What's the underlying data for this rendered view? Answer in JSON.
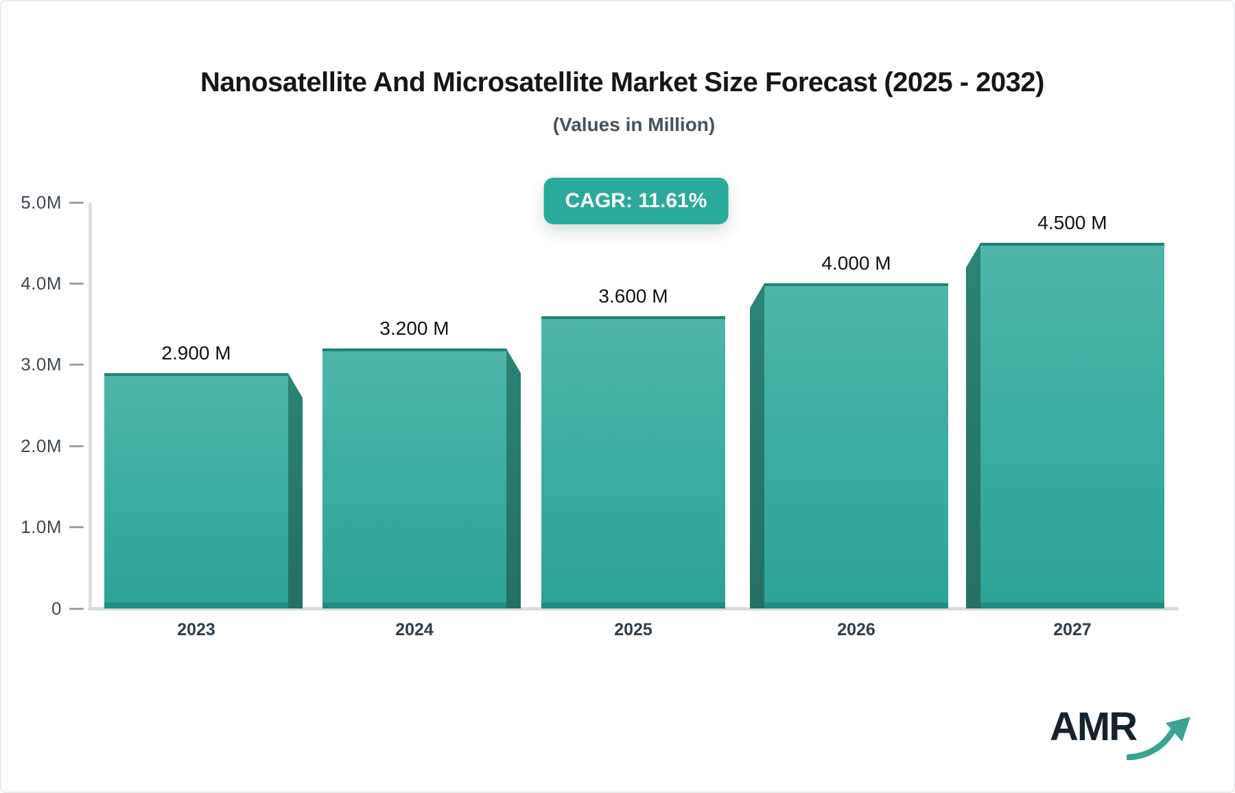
{
  "page": {
    "title": "Nanosatellite And Microsatellite Market Size Forecast (2025 - 2032)",
    "subtitle": "(Values in Million)",
    "cagr_label": "CAGR: 11.61%",
    "brand": "AMR"
  },
  "chart_data": {
    "type": "bar",
    "title": "Nanosatellite And Microsatellite Market Size Forecast (2025 - 2032)",
    "subtitle": "(Values in Million)",
    "unit": "Million",
    "categories": [
      "2023",
      "2024",
      "2025",
      "2026",
      "2027"
    ],
    "values": [
      2.9,
      3.2,
      3.6,
      4.0,
      4.5
    ],
    "value_labels": [
      "2.900 M",
      "3.200 M",
      "3.600 M",
      "4.000 M",
      "4.500 M"
    ],
    "cagr": "CAGR: 11.61%",
    "xlabel": "",
    "ylabel": "",
    "ylim": [
      0,
      5
    ],
    "y_ticks": [
      {
        "label": "5.0M",
        "value": 5
      },
      {
        "label": "4.0M",
        "value": 4
      },
      {
        "label": "3.0M",
        "value": 3
      },
      {
        "label": "2.0M",
        "value": 2
      },
      {
        "label": "1.0M",
        "value": 1
      },
      {
        "label": "0",
        "value": 0
      }
    ],
    "grid": false,
    "legend": false,
    "colors": {
      "bar_top": "#4fb5a9",
      "bar_bottom": "#2da296",
      "bar_top_edge": "#1e8275",
      "bar_side": "#28796c",
      "badge_bg": "#2ba99a",
      "badge_text": "#ffffff",
      "axis_line": "#dcdfe2",
      "tick_dash": "#9aa1a7",
      "tick_text": "#3d4852",
      "value_text": "#111111",
      "category_text": "#2f3e48",
      "logo_navy": "#15232d",
      "logo_teal": "#3aa392"
    }
  }
}
